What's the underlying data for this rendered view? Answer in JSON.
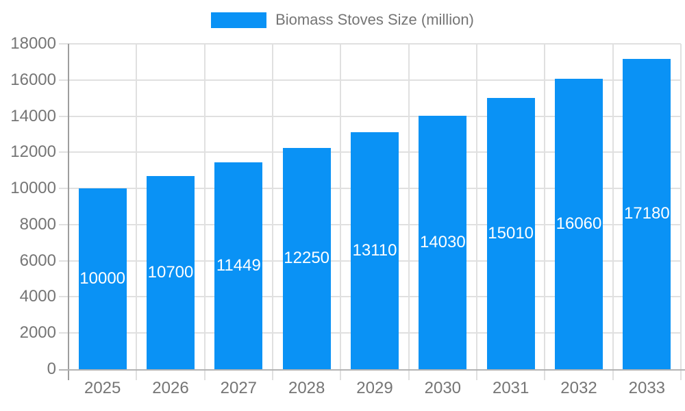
{
  "legend": {
    "label": "Biomass Stoves Size (million)"
  },
  "colors": {
    "bar": "#0a92f5",
    "bar_label": "#ffffff",
    "grid": "#e0e0e0",
    "y_axis": "#9e9e9e",
    "x_axis": "#b3b3b3",
    "label_text": "#757575",
    "background": "#ffffff"
  },
  "chart_data": {
    "type": "bar",
    "title": "",
    "xlabel": "",
    "ylabel": "",
    "categories": [
      "2025",
      "2026",
      "2027",
      "2028",
      "2029",
      "2030",
      "2031",
      "2032",
      "2033"
    ],
    "series": [
      {
        "name": "Biomass Stoves Size (million)",
        "color": "#0a92f5",
        "values": [
          10000,
          10700,
          11449,
          12250,
          13110,
          14030,
          15010,
          16060,
          17180
        ]
      }
    ],
    "ylim": [
      0,
      18000
    ],
    "yticks": [
      0,
      2000,
      4000,
      6000,
      8000,
      10000,
      12000,
      14000,
      16000,
      18000
    ],
    "grid": true,
    "legend_position": "top",
    "bar_value_labels": "inside-center"
  }
}
